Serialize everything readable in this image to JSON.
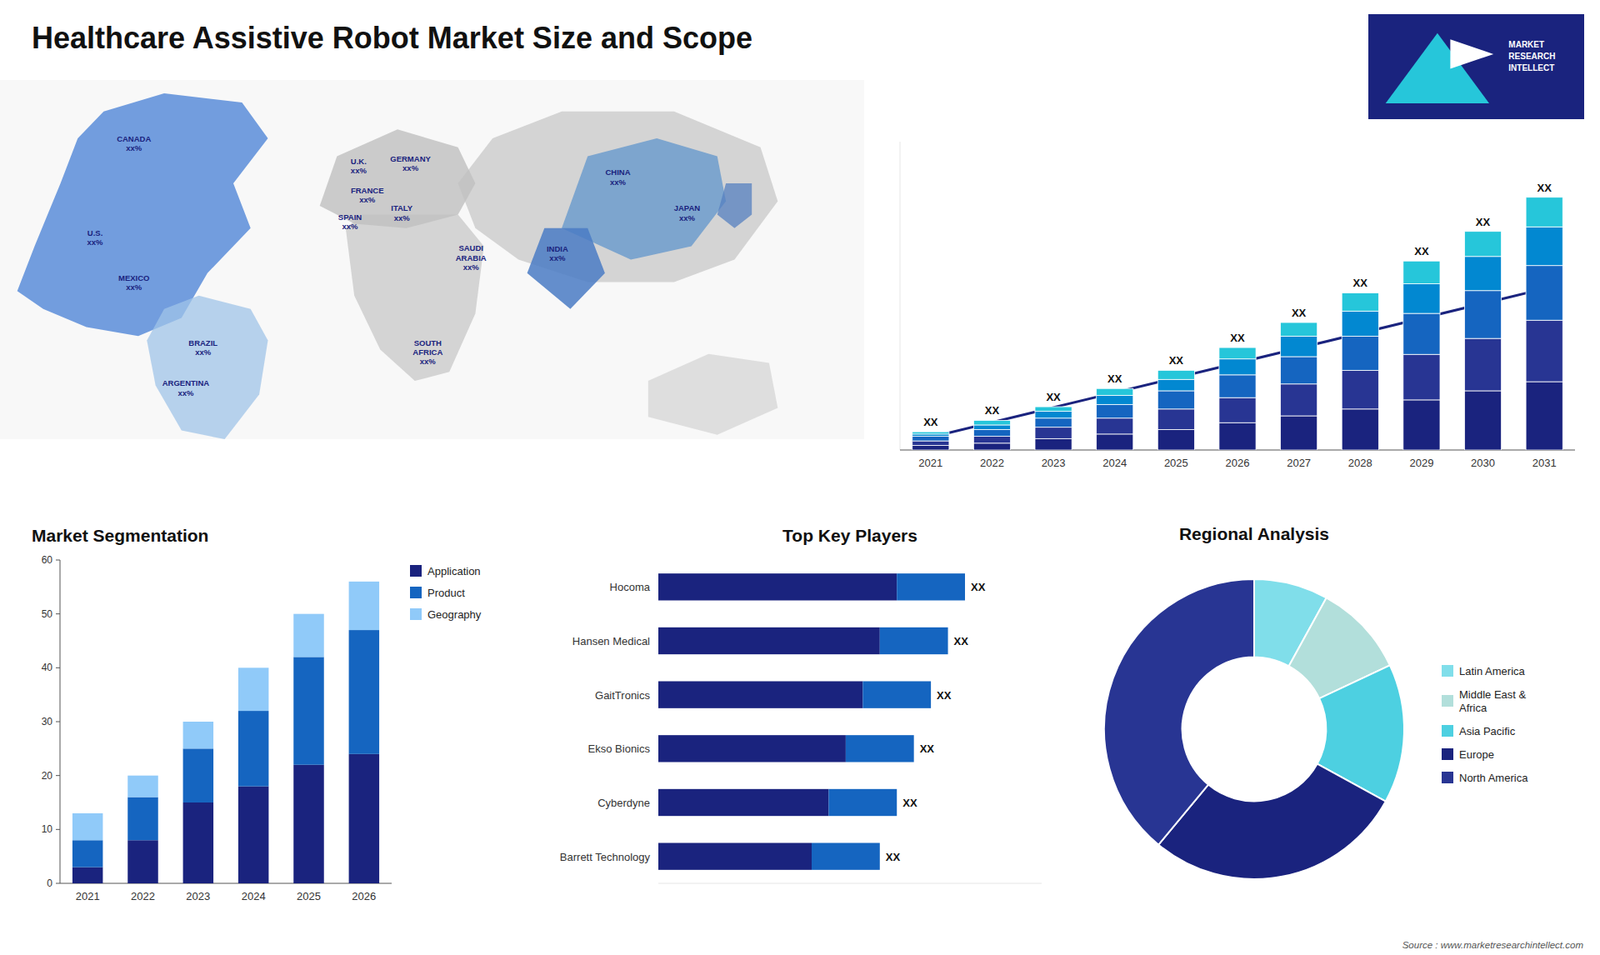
{
  "chart_data": [
    {
      "type": "map",
      "title": "Healthcare Assistive Robot Market Size and Scope",
      "annotations": [
        "U.S.\nxx%",
        "CANADA\nxx%",
        "MEXICO\nxx%",
        "BRAZIL\nxx%",
        "ARGENTINA\nxx%",
        "U.K.\nxx%",
        "FRANCE\nxx%",
        "SPAIN\nxx%",
        "GERMANY\nxx%",
        "ITALY\nxx%",
        "SAUDI\nARABIA\nxx%",
        "SOUTH\nAFRICA\nxx%",
        "CHINA\nxx%",
        "INDIA\nxx%",
        "JAPAN\nxx%",
        "MARKET\nRESEARCH\nINTELLECT",
        "Source : www.marketresearchintellect.com"
      ]
    },
    {
      "type": "bar",
      "stacked": true,
      "categories": [
        "2021",
        "2022",
        "2023",
        "2024",
        "2025",
        "2026",
        "2027",
        "2028",
        "2029",
        "2030",
        "2031"
      ],
      "series": [
        {
          "color": "#1a237e",
          "values": [
            2,
            3,
            5,
            7,
            9,
            12,
            15,
            18,
            22,
            26,
            30
          ]
        },
        {
          "color": "#283593",
          "values": [
            2,
            3,
            5,
            7,
            9,
            11,
            14,
            17,
            20,
            23,
            27
          ]
        },
        {
          "color": "#1565c0",
          "values": [
            2,
            3,
            4,
            6,
            8,
            10,
            12,
            15,
            18,
            21,
            24
          ]
        },
        {
          "color": "#0288d1",
          "values": [
            1,
            2,
            3,
            4,
            5,
            7,
            9,
            11,
            13,
            15,
            17
          ]
        },
        {
          "color": "#26c6da",
          "values": [
            1,
            2,
            2,
            3,
            4,
            5,
            6,
            8,
            10,
            11,
            13
          ]
        }
      ],
      "ylim": [
        0,
        135.42
      ],
      "tick_labels": "x",
      "annotations": [
        "XX",
        "XX",
        "XX",
        "XX",
        "XX",
        "XX",
        "XX",
        "XX",
        "XX",
        "XX",
        "XX"
      ]
    },
    {
      "type": "bar",
      "stacked": true,
      "title": "Market Segmentation",
      "categories": [
        "2021",
        "2022",
        "2023",
        "2024",
        "2025",
        "2026"
      ],
      "series": [
        {
          "name": "Application",
          "color": "#1a237e",
          "values": [
            3,
            8,
            15,
            18,
            22,
            24
          ]
        },
        {
          "name": "Product",
          "color": "#1565c0",
          "values": [
            5,
            8,
            10,
            14,
            20,
            23
          ]
        },
        {
          "name": "Geography",
          "color": "#90caf9",
          "values": [
            5,
            4,
            5,
            8,
            8,
            9
          ]
        }
      ],
      "ylim": [
        0,
        60
      ],
      "yticks": [
        0,
        10,
        20,
        30,
        40,
        50,
        60
      ],
      "legend": "right"
    },
    {
      "type": "bar",
      "orientation": "horizontal",
      "stacked": true,
      "title": "Top Key Players",
      "categories": [
        "Hocoma",
        "Hansen Medical",
        "GaitTronics",
        "Ekso Bionics",
        "Cyberdyne",
        "Barrett Technology"
      ],
      "series": [
        {
          "color": "#1a237e",
          "values": [
            7,
            6.5,
            6,
            5.5,
            5,
            4.5
          ]
        },
        {
          "color": "#1565c0",
          "values": [
            2,
            2,
            2,
            2,
            2,
            2
          ]
        }
      ],
      "xlim": [
        0,
        11.25
      ],
      "tick_labels": "y",
      "annotations": [
        "XX",
        "XX",
        "XX",
        "XX",
        "XX",
        "XX"
      ]
    },
    {
      "type": "donut",
      "title": "Regional Analysis",
      "categories": [
        "Latin America",
        "Middle East &\nAfrica",
        "Asia Pacific",
        "Europe",
        "North America"
      ],
      "values": [
        8,
        10,
        15,
        28,
        39
      ],
      "colors": [
        "#80deea",
        "#b2dfdb",
        "#4dd0e1",
        "#1a237e",
        "#283593"
      ],
      "legend": "right"
    }
  ]
}
